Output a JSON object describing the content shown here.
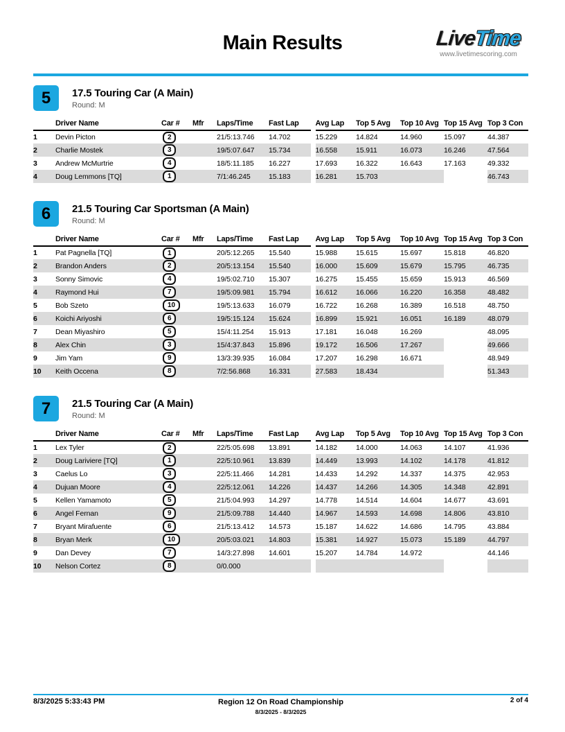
{
  "header": {
    "title": "Main Results",
    "logo": {
      "live": "Live",
      "time": "Time",
      "website": "www.livetimescoring.com"
    }
  },
  "colors": {
    "accent": "#1ba7e0",
    "row_stripe": "#dbdbdb"
  },
  "table": {
    "columns": [
      "Driver Name",
      "Car #",
      "Mfr",
      "Laps/Time",
      "Fast Lap",
      "Avg Lap",
      "Top 5 Avg",
      "Top 10 Avg",
      "Top 15 Avg",
      "Top 3 Con"
    ]
  },
  "races": [
    {
      "number": "5",
      "title": "17.5 Touring Car (A Main)",
      "round": "Round: M",
      "rows": [
        {
          "cells": [
            "1",
            "Devin Picton",
            "2",
            "",
            "21/5:13.746",
            "14.702",
            "15.229",
            "14.824",
            "14.960",
            "15.097",
            "44.387"
          ]
        },
        {
          "cells": [
            "2",
            "Charlie Mostek",
            "3",
            "",
            "19/5:07.647",
            "15.734",
            "16.558",
            "15.911",
            "16.073",
            "16.246",
            "47.564"
          ]
        },
        {
          "cells": [
            "3",
            "Andrew McMurtrie",
            "4",
            "",
            "18/5:11.185",
            "16.227",
            "17.693",
            "16.322",
            "16.643",
            "17.163",
            "49.332"
          ]
        },
        {
          "cells": [
            "4",
            "Doug Lemmons [TQ]",
            "1",
            "",
            "7/1:46.245",
            "15.183",
            "16.281",
            "15.703",
            "",
            "",
            "46.743"
          ],
          "plain": [
            9
          ]
        }
      ]
    },
    {
      "number": "6",
      "title": "21.5 Touring Car Sportsman (A Main)",
      "round": "Round: M",
      "rows": [
        {
          "cells": [
            "1",
            "Pat Pagnella [TQ]",
            "1",
            "",
            "20/5:12.265",
            "15.540",
            "15.988",
            "15.615",
            "15.697",
            "15.818",
            "46.820"
          ]
        },
        {
          "cells": [
            "2",
            "Brandon Anders",
            "2",
            "",
            "20/5:13.154",
            "15.540",
            "16.000",
            "15.609",
            "15.679",
            "15.795",
            "46.735"
          ]
        },
        {
          "cells": [
            "3",
            "Sonny Simovic",
            "4",
            "",
            "19/5:02.710",
            "15.307",
            "16.275",
            "15.455",
            "15.659",
            "15.913",
            "46.569"
          ]
        },
        {
          "cells": [
            "4",
            "Raymond Hui",
            "7",
            "",
            "19/5:09.981",
            "15.794",
            "16.612",
            "16.066",
            "16.220",
            "16.358",
            "48.482"
          ]
        },
        {
          "cells": [
            "5",
            "Bob Szeto",
            "10",
            "",
            "19/5:13.633",
            "16.079",
            "16.722",
            "16.268",
            "16.389",
            "16.518",
            "48.750"
          ]
        },
        {
          "cells": [
            "6",
            "Koichi Ariyoshi",
            "6",
            "",
            "19/5:15.124",
            "15.624",
            "16.899",
            "15.921",
            "16.051",
            "16.189",
            "48.079"
          ]
        },
        {
          "cells": [
            "7",
            "Dean Miyashiro",
            "5",
            "",
            "15/4:11.254",
            "15.913",
            "17.181",
            "16.048",
            "16.269",
            "",
            "48.095"
          ]
        },
        {
          "cells": [
            "8",
            "Alex Chin",
            "3",
            "",
            "15/4:37.843",
            "15.896",
            "19.172",
            "16.506",
            "17.267",
            "",
            "49.666"
          ],
          "plain": [
            9
          ]
        },
        {
          "cells": [
            "9",
            "Jim Yam",
            "9",
            "",
            "13/3:39.935",
            "16.084",
            "17.207",
            "16.298",
            "16.671",
            "",
            "48.949"
          ]
        },
        {
          "cells": [
            "10",
            "Keith Occena",
            "8",
            "",
            "7/2:56.868",
            "16.331",
            "27.583",
            "18.434",
            "",
            "",
            "51.343"
          ],
          "plain": [
            9
          ]
        }
      ]
    },
    {
      "number": "7",
      "title": "21.5 Touring Car (A Main)",
      "round": "Round: M",
      "rows": [
        {
          "cells": [
            "1",
            "Lex Tyler",
            "2",
            "",
            "22/5:05.698",
            "13.891",
            "14.182",
            "14.000",
            "14.063",
            "14.107",
            "41.936"
          ]
        },
        {
          "cells": [
            "2",
            "Doug Lariviere [TQ]",
            "1",
            "",
            "22/5:10.961",
            "13.839",
            "14.449",
            "13.993",
            "14.102",
            "14.178",
            "41.812"
          ]
        },
        {
          "cells": [
            "3",
            "Caelus Lo",
            "3",
            "",
            "22/5:11.466",
            "14.281",
            "14.433",
            "14.292",
            "14.337",
            "14.375",
            "42.953"
          ]
        },
        {
          "cells": [
            "4",
            "Dujuan Moore",
            "4",
            "",
            "22/5:12.061",
            "14.226",
            "14.437",
            "14.266",
            "14.305",
            "14.348",
            "42.891"
          ]
        },
        {
          "cells": [
            "5",
            "Kellen Yamamoto",
            "5",
            "",
            "21/5:04.993",
            "14.297",
            "14.778",
            "14.514",
            "14.604",
            "14.677",
            "43.691"
          ]
        },
        {
          "cells": [
            "6",
            "Angel Fernan",
            "9",
            "",
            "21/5:09.788",
            "14.440",
            "14.967",
            "14.593",
            "14.698",
            "14.806",
            "43.810"
          ]
        },
        {
          "cells": [
            "7",
            "Bryant Mirafuente",
            "6",
            "",
            "21/5:13.412",
            "14.573",
            "15.187",
            "14.622",
            "14.686",
            "14.795",
            "43.884"
          ]
        },
        {
          "cells": [
            "8",
            "Bryan Merk",
            "10",
            "",
            "20/5:03.021",
            "14.803",
            "15.381",
            "14.927",
            "15.073",
            "15.189",
            "44.797"
          ]
        },
        {
          "cells": [
            "9",
            "Dan Devey",
            "7",
            "",
            "14/3:27.898",
            "14.601",
            "15.207",
            "14.784",
            "14.972",
            "",
            "44.146"
          ]
        },
        {
          "cells": [
            "10",
            "Nelson Cortez",
            "8",
            "",
            "0/0.000",
            "",
            "",
            "",
            "",
            "",
            ""
          ],
          "plain": [
            9
          ]
        }
      ]
    }
  ],
  "footer": {
    "printed": "8/3/2025 5:33:43 PM",
    "event": "Region 12 On Road Championship",
    "dates": "8/3/2025 - 8/3/2025",
    "page": "2 of 4"
  }
}
